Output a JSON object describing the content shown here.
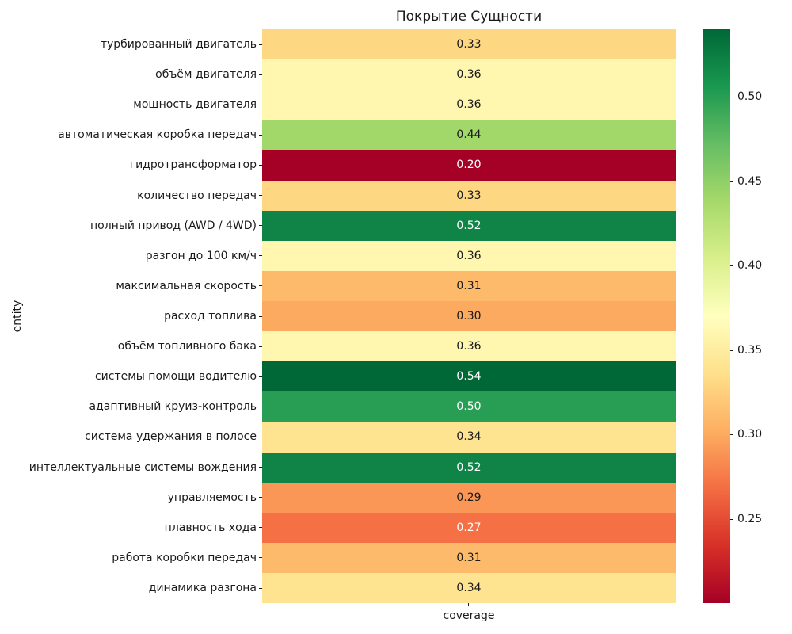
{
  "chart_data": {
    "type": "heatmap",
    "title": "Покрытие Сущности",
    "xlabel": "coverage",
    "ylabel": "entity",
    "columns": [
      "coverage"
    ],
    "value_range": [
      0.2,
      0.54
    ],
    "colormap": "RdYlGn",
    "grid": false,
    "rows": [
      {
        "entity": "турбированный двигатель",
        "coverage": 0.33,
        "label": "0.33",
        "color": "#fed783",
        "text": "#1a1a1a"
      },
      {
        "entity": "объём двигателя",
        "coverage": 0.36,
        "label": "0.36",
        "color": "#fff6b0",
        "text": "#1a1a1a"
      },
      {
        "entity": "мощность двигателя",
        "coverage": 0.36,
        "label": "0.36",
        "color": "#fff6b0",
        "text": "#1a1a1a"
      },
      {
        "entity": "автоматическая коробка передач",
        "coverage": 0.44,
        "label": "0.44",
        "color": "#a2d76a",
        "text": "#1a1a1a"
      },
      {
        "entity": "гидротрансформатор",
        "coverage": 0.2,
        "label": "0.20",
        "color": "#a50026",
        "text": "#ffffff"
      },
      {
        "entity": "количество передач",
        "coverage": 0.33,
        "label": "0.33",
        "color": "#fed783",
        "text": "#1a1a1a"
      },
      {
        "entity": "полный привод (AWD / 4WD)",
        "coverage": 0.52,
        "label": "0.52",
        "color": "#0f8446",
        "text": "#ffffff"
      },
      {
        "entity": "разгон до 100 км/ч",
        "coverage": 0.36,
        "label": "0.36",
        "color": "#fff6b0",
        "text": "#1a1a1a"
      },
      {
        "entity": "максимальная скорость",
        "coverage": 0.31,
        "label": "0.31",
        "color": "#fdba6b",
        "text": "#1a1a1a"
      },
      {
        "entity": "расход топлива",
        "coverage": 0.3,
        "label": "0.30",
        "color": "#fcaa5f",
        "text": "#1a1a1a"
      },
      {
        "entity": "объём топливного бака",
        "coverage": 0.36,
        "label": "0.36",
        "color": "#fff6b0",
        "text": "#1a1a1a"
      },
      {
        "entity": "системы помощи водителю",
        "coverage": 0.54,
        "label": "0.54",
        "color": "#006837",
        "text": "#ffffff"
      },
      {
        "entity": "адаптивный круиз-контроль",
        "coverage": 0.5,
        "label": "0.50",
        "color": "#279e53",
        "text": "#ffffff"
      },
      {
        "entity": "система удержания в полосе",
        "coverage": 0.34,
        "label": "0.34",
        "color": "#fee491",
        "text": "#1a1a1a"
      },
      {
        "entity": "интеллектуальные системы вождения",
        "coverage": 0.52,
        "label": "0.52",
        "color": "#0f8446",
        "text": "#ffffff"
      },
      {
        "entity": "управляемость",
        "coverage": 0.29,
        "label": "0.29",
        "color": "#fa9756",
        "text": "#1a1a1a"
      },
      {
        "entity": "плавность хода",
        "coverage": 0.27,
        "label": "0.27",
        "color": "#f57145",
        "text": "#ffffff"
      },
      {
        "entity": "работа коробки передач",
        "coverage": 0.31,
        "label": "0.31",
        "color": "#fdba6b",
        "text": "#1a1a1a"
      },
      {
        "entity": "динамика разгона",
        "coverage": 0.34,
        "label": "0.34",
        "color": "#fee491",
        "text": "#1a1a1a"
      }
    ],
    "colorbar": {
      "min": 0.2,
      "max": 0.54,
      "ticks": [
        {
          "value": 0.5,
          "label": "0.50"
        },
        {
          "value": 0.45,
          "label": "0.45"
        },
        {
          "value": 0.4,
          "label": "0.40"
        },
        {
          "value": 0.35,
          "label": "0.35"
        },
        {
          "value": 0.3,
          "label": "0.30"
        },
        {
          "value": 0.25,
          "label": "0.25"
        }
      ],
      "gradient_top_to_bottom": [
        "#006837",
        "#1a9850",
        "#66bd63",
        "#a6d96a",
        "#d9ef8b",
        "#ffffbf",
        "#fee08b",
        "#fdae61",
        "#f46d43",
        "#d73027",
        "#a50026"
      ]
    }
  }
}
